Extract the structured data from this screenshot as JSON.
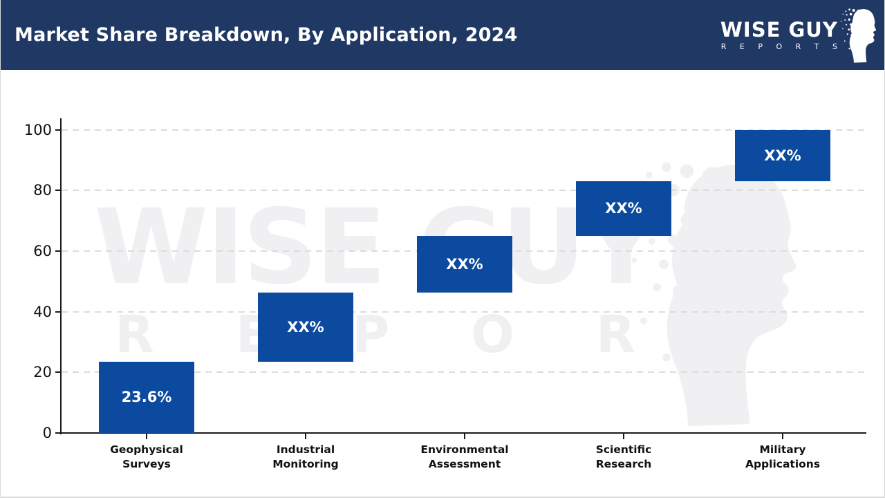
{
  "header": {
    "title": "Market Share Breakdown, By Application, 2024",
    "bg_color": "#1f3864",
    "logo": {
      "primary": "WISE GUY",
      "secondary": "R E P O R T S"
    }
  },
  "watermark": {
    "line1": "WISE GUY",
    "line2": "REPORTS"
  },
  "chart_data": {
    "type": "bar",
    "subtype": "stacked-waterfall",
    "title": "Market Share Breakdown, By Application, 2024",
    "categories": [
      "Geophysical Surveys",
      "Industrial Monitoring",
      "Environmental Assessment",
      "Scientific Research",
      "Military Applications"
    ],
    "category_lines": [
      [
        "Geophysical",
        "Surveys"
      ],
      [
        "Industrial",
        "Monitoring"
      ],
      [
        "Environmental",
        "Assessment"
      ],
      [
        "Scientific",
        "Research"
      ],
      [
        "Military",
        "Applications"
      ]
    ],
    "segments": [
      {
        "category": "Geophysical Surveys",
        "start": 0,
        "end": 23.6,
        "label": "23.6%"
      },
      {
        "category": "Industrial Monitoring",
        "start": 23.6,
        "end": 46.2,
        "label": "XX%"
      },
      {
        "category": "Environmental Assessment",
        "start": 46.2,
        "end": 65.1,
        "label": "XX%"
      },
      {
        "category": "Scientific Research",
        "start": 65.1,
        "end": 82.9,
        "label": "XX%"
      },
      {
        "category": "Military Applications",
        "start": 82.9,
        "end": 100,
        "label": "XX%"
      }
    ],
    "ylim": [
      0,
      100
    ],
    "yticks": [
      0,
      20,
      40,
      60,
      80,
      100
    ],
    "grid": "horizontal-dashed",
    "legend": "none",
    "bar_color": "#0b4a9e",
    "value_label_color": "#ffffff",
    "axis_color": "#1a1a1a",
    "gridline_color": "#dcdcdc"
  }
}
